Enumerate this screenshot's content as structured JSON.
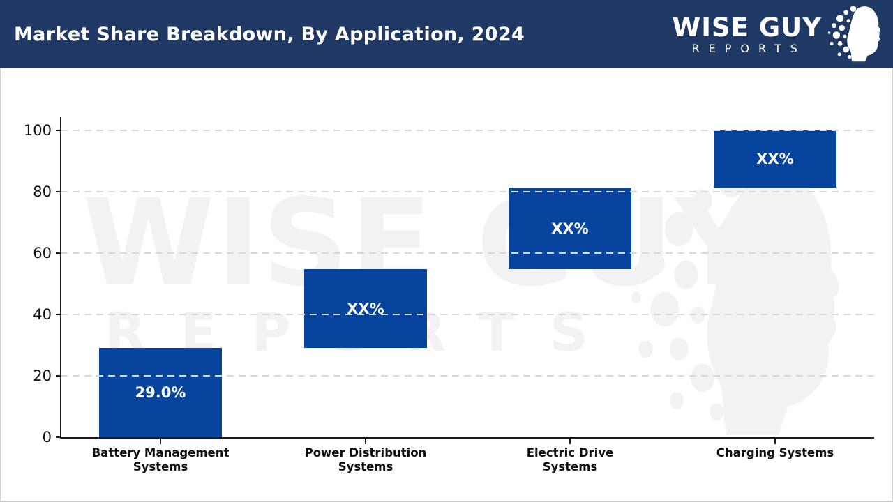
{
  "header": {
    "title": "Market Share Breakdown, By Application, 2024",
    "logo": {
      "line1": "WISE GUY",
      "line2": "REPORTS"
    }
  },
  "watermark": {
    "line1": "WISE GUY",
    "line2": "REPORTS"
  },
  "colors": {
    "header_bg": "#203864",
    "bar": "#06449d",
    "grid": "#d9d9d9",
    "axis": "#1a1a1a",
    "watermark": "#f2f2f4",
    "label_on_bar": "#ffffff",
    "text": "#111111"
  },
  "chart_data": {
    "type": "bar",
    "subtype": "waterfall",
    "title": "Market Share Breakdown, By Application, 2024",
    "categories": [
      "Battery Management Systems",
      "Power Distribution Systems",
      "Electric Drive Systems",
      "Charging Systems"
    ],
    "category_display_lines": [
      [
        "Battery Management",
        "Systems"
      ],
      [
        "Power Distribution",
        "Systems"
      ],
      [
        "Electric Drive",
        "Systems"
      ],
      [
        "Charging Systems"
      ]
    ],
    "segments": [
      {
        "category": "Battery Management Systems",
        "start": 0,
        "end": 29.0,
        "value": 29.0,
        "label": "29.0%"
      },
      {
        "category": "Power Distribution Systems",
        "start": 29.0,
        "end": 54.7,
        "value": 25.7,
        "label": "XX%"
      },
      {
        "category": "Electric Drive Systems",
        "start": 54.7,
        "end": 81.3,
        "value": 26.6,
        "label": "XX%"
      },
      {
        "category": "Charging Systems",
        "start": 81.3,
        "end": 100.0,
        "value": 18.7,
        "label": "XX%"
      }
    ],
    "xlabel": "",
    "ylabel": "",
    "ylim": [
      0,
      100
    ],
    "yticks": [
      0,
      20,
      40,
      60,
      80,
      100
    ],
    "grid": "horizontal dashed, drawn over bars",
    "legend": "none"
  }
}
